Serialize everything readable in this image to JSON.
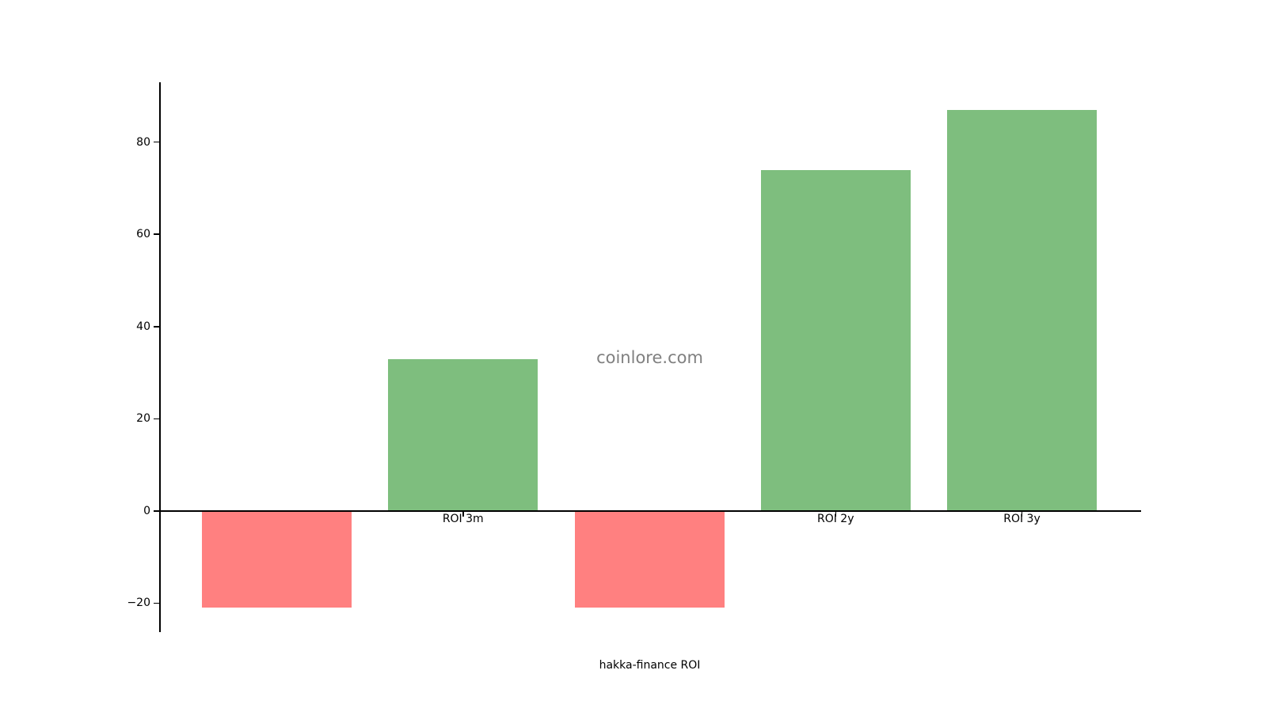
{
  "chart_data": {
    "type": "bar",
    "title": "hakka-finance ROI",
    "watermark": "coinlore.com",
    "categories": [
      "",
      "ROI 3m",
      "",
      "ROI 2y",
      "ROI 3y"
    ],
    "values": [
      -21,
      33,
      -21,
      74,
      87
    ],
    "bar_colors": [
      "#ff8080",
      "#7ebe7e",
      "#ff8080",
      "#7ebe7e",
      "#7ebe7e"
    ],
    "positive_color": "#7ebe7e",
    "negative_color": "#ff8080",
    "ylim": [
      -26.3,
      93
    ],
    "yticks": [
      80,
      60,
      40,
      20,
      0,
      -20
    ],
    "ytick_labels": [
      "80",
      "60",
      "40",
      "20",
      "0",
      "−20"
    ],
    "xlabel": "",
    "ylabel": "",
    "grid": false,
    "legend": "none",
    "axis_color": "#000000",
    "tick_label_color": "#000000",
    "watermark_color": "#808080",
    "background_color": "#ffffff"
  }
}
